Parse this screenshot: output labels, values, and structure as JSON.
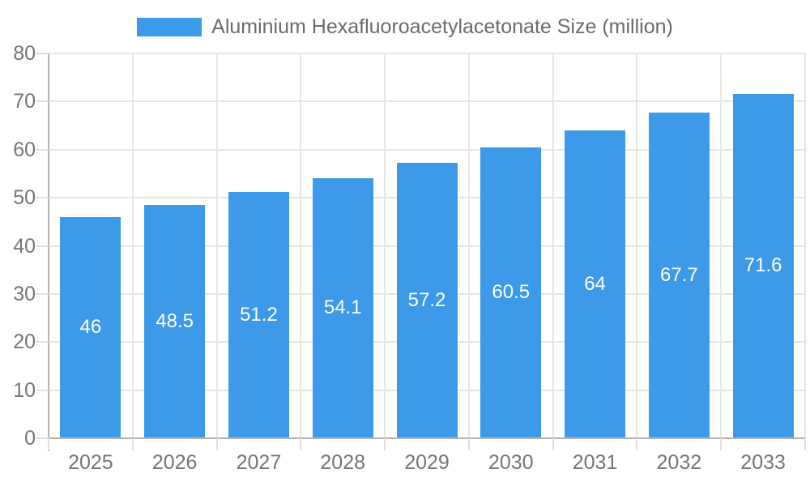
{
  "chart_data": {
    "type": "bar",
    "title": "Aluminium Hexafluoroacetylacetonate Size (million)",
    "legend_entries": [
      "Aluminium Hexafluoroacetylacetonate Size (million)"
    ],
    "legend_position": "top-center",
    "categories": [
      "2025",
      "2026",
      "2027",
      "2028",
      "2029",
      "2030",
      "2031",
      "2032",
      "2033"
    ],
    "values": [
      46,
      48.5,
      51.2,
      54.1,
      57.2,
      60.5,
      64,
      67.7,
      71.6
    ],
    "bar_labels": [
      "46",
      "48.5",
      "51.2",
      "54.1",
      "57.2",
      "60.5",
      "64",
      "67.7",
      "71.6"
    ],
    "xlabel": "",
    "ylabel": "",
    "ylim": [
      0,
      80
    ],
    "yticks": [
      0,
      10,
      20,
      30,
      40,
      50,
      60,
      70,
      80
    ],
    "grid": true,
    "colors": {
      "bar": "#3C9AE9",
      "bar_label": "#FFFFFF",
      "axis_line": "#B3B3B3",
      "grid_line": "#E6E6E6",
      "tick_line": "#E0E0E0",
      "axis_label": "#757575",
      "legend_text": "#6B6B6B",
      "background": "#FFFFFF"
    }
  }
}
